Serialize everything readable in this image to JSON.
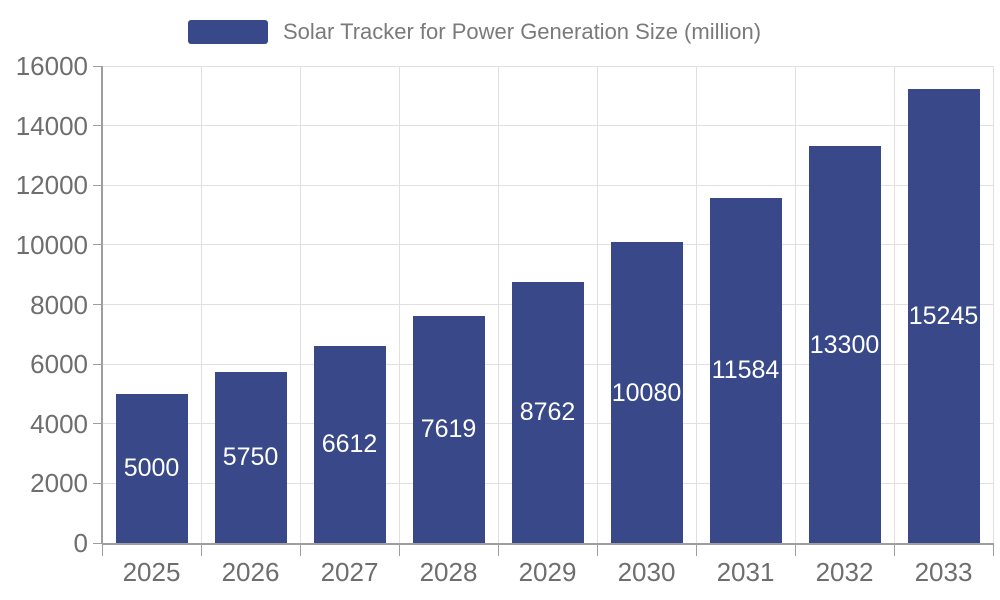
{
  "chart_data": {
    "type": "bar",
    "title": "Solar Tracker for Power Generation Size (million)",
    "categories": [
      "2025",
      "2026",
      "2027",
      "2028",
      "2029",
      "2030",
      "2031",
      "2032",
      "2033"
    ],
    "series": [
      {
        "name": "Solar Tracker for Power Generation Size (million)",
        "values": [
          5000,
          5750,
          6612,
          7619,
          8762,
          10080,
          11584,
          13300,
          15245
        ]
      }
    ],
    "bar_value_labels": [
      "5000",
      "5750",
      "6612",
      "7619",
      "8762",
      "10080",
      "11584",
      "13300",
      "15245"
    ],
    "xlabel": "",
    "ylabel": "",
    "ylim": [
      0,
      16000
    ],
    "y_tick_step": 2000,
    "y_tick_labels": [
      "0",
      "2000",
      "4000",
      "6000",
      "8000",
      "10000",
      "12000",
      "14000",
      "16000"
    ],
    "grid": "both",
    "legend_position": "top",
    "colors": {
      "bar": "#394888",
      "bar_label_text": "#ffffff",
      "axis_tick_text": "#6e6e6e",
      "legend_text": "#7a7a7a",
      "gridline": "#e0e0e0",
      "axis_line": "#9e9e9e"
    }
  }
}
